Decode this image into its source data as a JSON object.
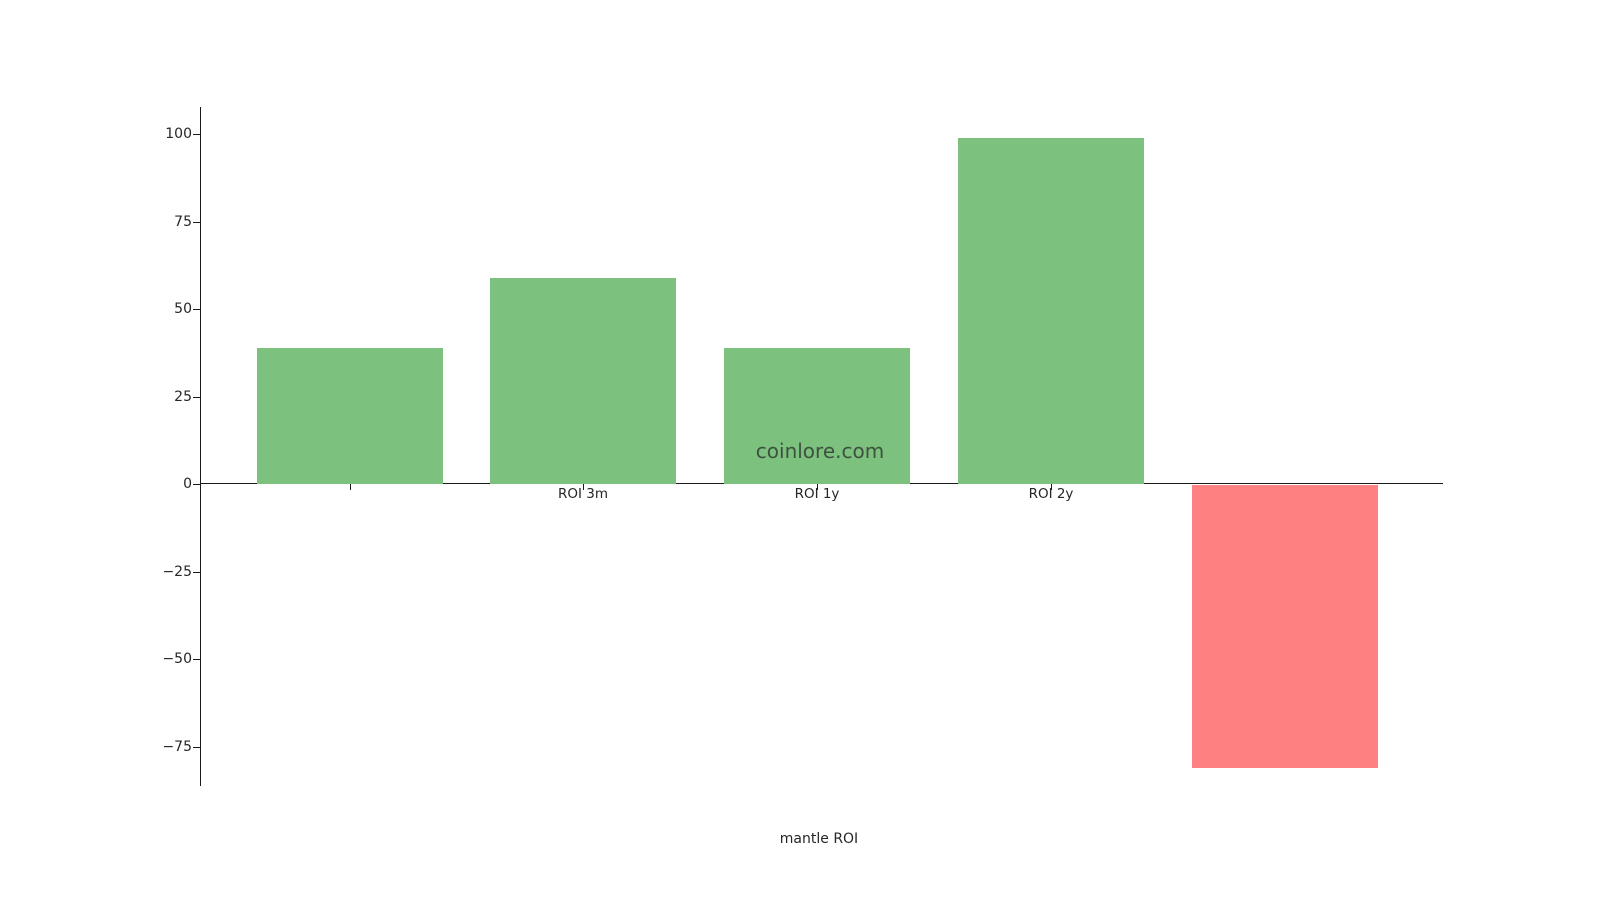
{
  "chart_data": {
    "type": "bar",
    "title": "",
    "xlabel": "mantle ROI",
    "ylabel": "",
    "categories": [
      "",
      "ROI 3m",
      "ROI 1y",
      "ROI 2y",
      ""
    ],
    "values": [
      39,
      59,
      39,
      99,
      -81
    ],
    "series": [
      {
        "name": "mantle ROI",
        "values": [
          39,
          59,
          39,
          99,
          -81
        ]
      }
    ],
    "yticks": [
      100,
      75,
      50,
      25,
      0,
      -25,
      -50,
      -75
    ],
    "ytick_labels": [
      "100",
      "75",
      "50",
      "25",
      "0",
      "−25",
      "−50",
      "−75"
    ],
    "ylim": [
      -88,
      108
    ],
    "grid": false,
    "legend_position": "none",
    "positive_color": "#7cc17e",
    "negative_color": "#ff8080",
    "axis_color": "#1a1a1a",
    "text_color": "#262626",
    "watermark": "coinlore.com"
  }
}
